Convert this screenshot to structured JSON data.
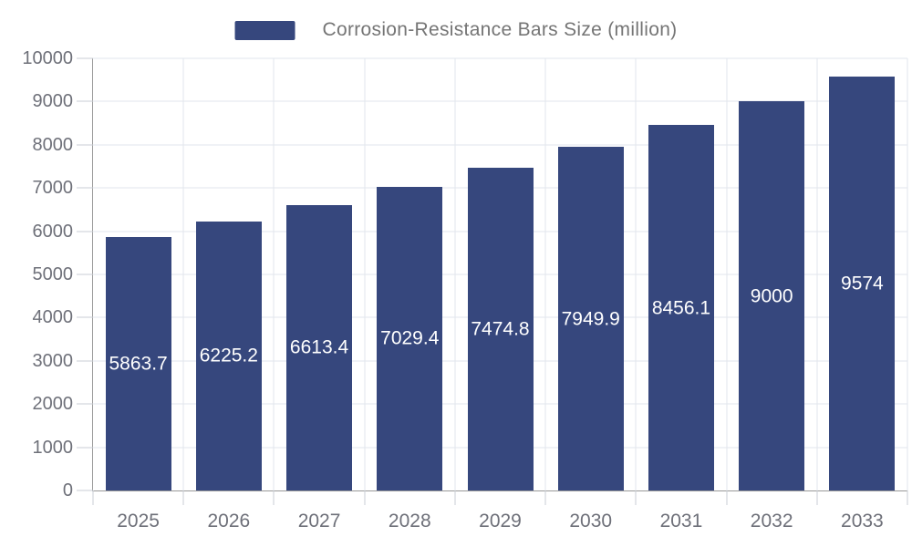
{
  "chart_data": {
    "type": "bar",
    "title": "Corrosion-Resistance Bars Size (million)",
    "xlabel": "",
    "ylabel": "",
    "categories": [
      "2025",
      "2026",
      "2027",
      "2028",
      "2029",
      "2030",
      "2031",
      "2032",
      "2033"
    ],
    "values": [
      5863.7,
      6225.2,
      6613.4,
      7029.4,
      7474.8,
      7949.9,
      8456.1,
      9000,
      9574
    ],
    "value_labels": [
      "5863.7",
      "6225.2",
      "6613.4",
      "7029.4",
      "7474.8",
      "7949.9",
      "8456.1",
      "9000",
      "9574"
    ],
    "ylim": [
      0,
      10000
    ],
    "y_ticks": [
      0,
      1000,
      2000,
      3000,
      4000,
      5000,
      6000,
      7000,
      8000,
      9000,
      10000
    ],
    "grid": true,
    "legend_position": "top-center",
    "value_label_position": "inside-center",
    "colors": {
      "bar": "#36477D",
      "grid_line": "#E2E5EC",
      "axis_line": "#999999",
      "tick_line": "#C9CDD4",
      "axis_text": "#6E7079",
      "legend_text": "#757575",
      "value_label": "#FFFFFF",
      "background": "#FFFFFF"
    }
  }
}
